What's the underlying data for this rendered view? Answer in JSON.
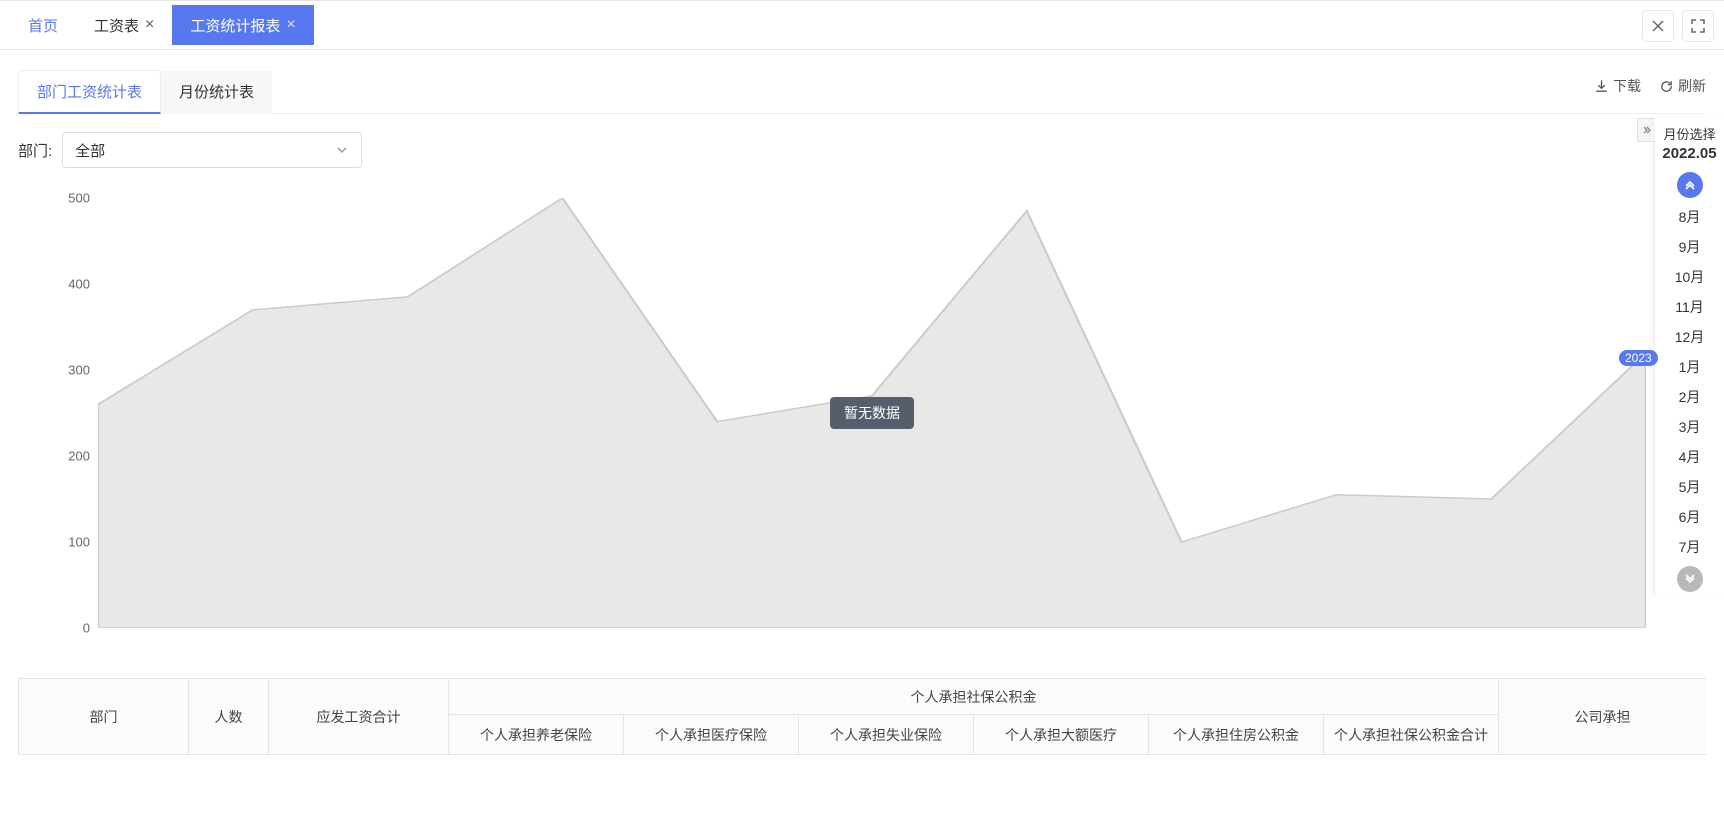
{
  "top_tabs": {
    "home": "首页",
    "t1": {
      "label": "工资表"
    },
    "t2": {
      "label": "工资统计报表"
    }
  },
  "sub_tabs": {
    "t1": "部门工资统计表",
    "t2": "月份统计表"
  },
  "actions": {
    "download": "下载",
    "refresh": "刷新"
  },
  "filter": {
    "label": "部门:",
    "value": "全部"
  },
  "chart": {
    "type": "area",
    "ylim": [
      0,
      500
    ],
    "yticks": [
      0,
      100,
      200,
      300,
      400,
      500
    ],
    "background_color": "#ffffff",
    "area_fill": "#e8e8e8",
    "area_stroke": "#cccccc",
    "tooltip_text": "暂无数据",
    "tooltip_bg": "#565d6b",
    "tick_fontsize": 13,
    "values": [
      260,
      370,
      385,
      500,
      240,
      270,
      485,
      100,
      155,
      150,
      320
    ]
  },
  "table": {
    "cols_fixed": [
      "部门",
      "人数",
      "应发工资合计"
    ],
    "group_header": "个人承担社保公积金",
    "group_cols": [
      "个人承担养老保险",
      "个人承担医疗保险",
      "个人承担失业保险",
      "个人承担大额医疗",
      "个人承担住房公积金",
      "个人承担社保公积金合计"
    ],
    "overflow_col": "公司承担"
  },
  "month_panel": {
    "title": "月份选择",
    "selected": "2022.05",
    "year_badge": "2023",
    "items": [
      "8月",
      "9月",
      "10月",
      "11月",
      "12月",
      "1月",
      "2月",
      "3月",
      "4月",
      "5月",
      "6月",
      "7月"
    ]
  }
}
